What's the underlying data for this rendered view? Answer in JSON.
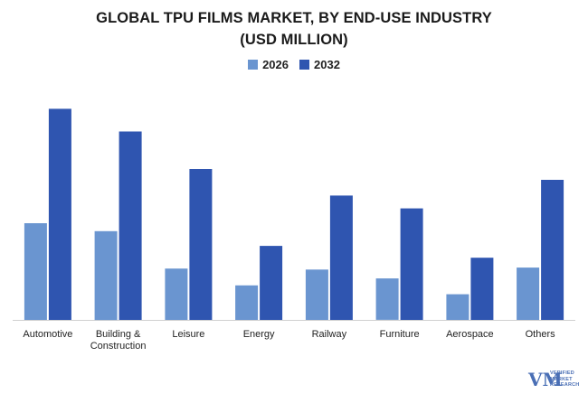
{
  "chart_data": {
    "type": "bar",
    "title_line1": "GLOBAL TPU FILMS MARKET, BY END-USE INDUSTRY",
    "title_line2": "(USD MILLION)",
    "categories": [
      "Automotive",
      "Building &\nConstruction",
      "Leisure",
      "Energy",
      "Railway",
      "Furniture",
      "Aerospace",
      "Others"
    ],
    "series": [
      {
        "name": "2026",
        "color": "#6a95d0",
        "values": [
          98,
          90,
          52,
          35,
          51,
          42,
          26,
          53
        ]
      },
      {
        "name": "2032",
        "color": "#2f55b0",
        "values": [
          214,
          191,
          153,
          75,
          126,
          113,
          63,
          142
        ]
      }
    ],
    "ylim": [
      0,
      240
    ],
    "legend_position": "top-center",
    "grid": false
  },
  "logo": {
    "mark": "VM",
    "lines": [
      "VERIFIED",
      "MARKET",
      "RESEARCH"
    ]
  }
}
